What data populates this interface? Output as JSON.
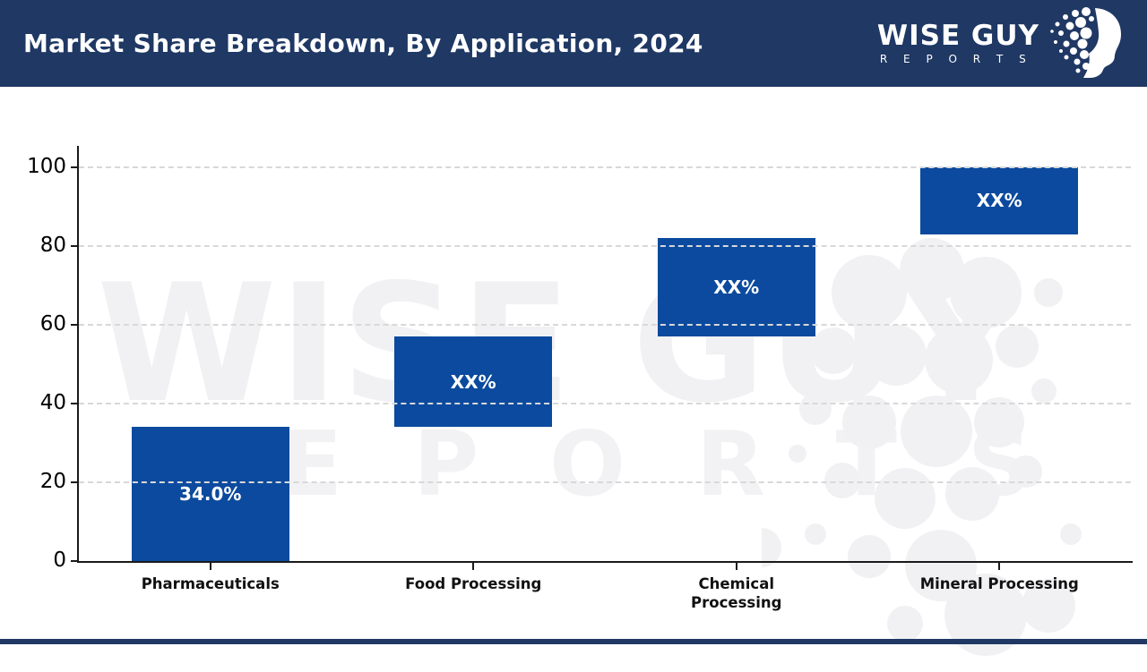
{
  "header": {
    "title": "Market Share Breakdown, By Application, 2024",
    "logo": {
      "line1": "WISE GUY",
      "line2": "R E P O R T S"
    }
  },
  "watermark": {
    "line1": "WISE GUY",
    "line2": "R E P O R T S"
  },
  "chart_data": {
    "type": "bar",
    "subtype": "waterfall",
    "title": "Market Share Breakdown, By Application, 2024",
    "categories": [
      "Pharmaceuticals",
      "Food Processing",
      "Chemical\nProcessing",
      "Mineral Processing"
    ],
    "series": [
      {
        "name": "Market Share (%)",
        "segments": [
          {
            "category": "Pharmaceuticals",
            "start": 0,
            "end": 34,
            "label": "34.0%"
          },
          {
            "category": "Food Processing",
            "start": 34,
            "end": 57,
            "label": "XX%"
          },
          {
            "category": "Chemical Processing",
            "start": 57,
            "end": 82,
            "label": "XX%"
          },
          {
            "category": "Mineral Processing",
            "start": 83,
            "end": 100,
            "label": "XX%"
          }
        ]
      }
    ],
    "ylim": [
      0,
      104
    ],
    "yticks": [
      0,
      20,
      40,
      60,
      80,
      100
    ],
    "xlabel": "",
    "ylabel": "",
    "grid": "horizontal-dashed",
    "legend": "none",
    "colors": {
      "bar": "#0b4a9e",
      "bar_label": "#ffffff",
      "grid": "#d8d8d8",
      "axis": "#1a1a1a",
      "header_bg": "#1f3864",
      "watermark": "#f1f1f4"
    }
  }
}
